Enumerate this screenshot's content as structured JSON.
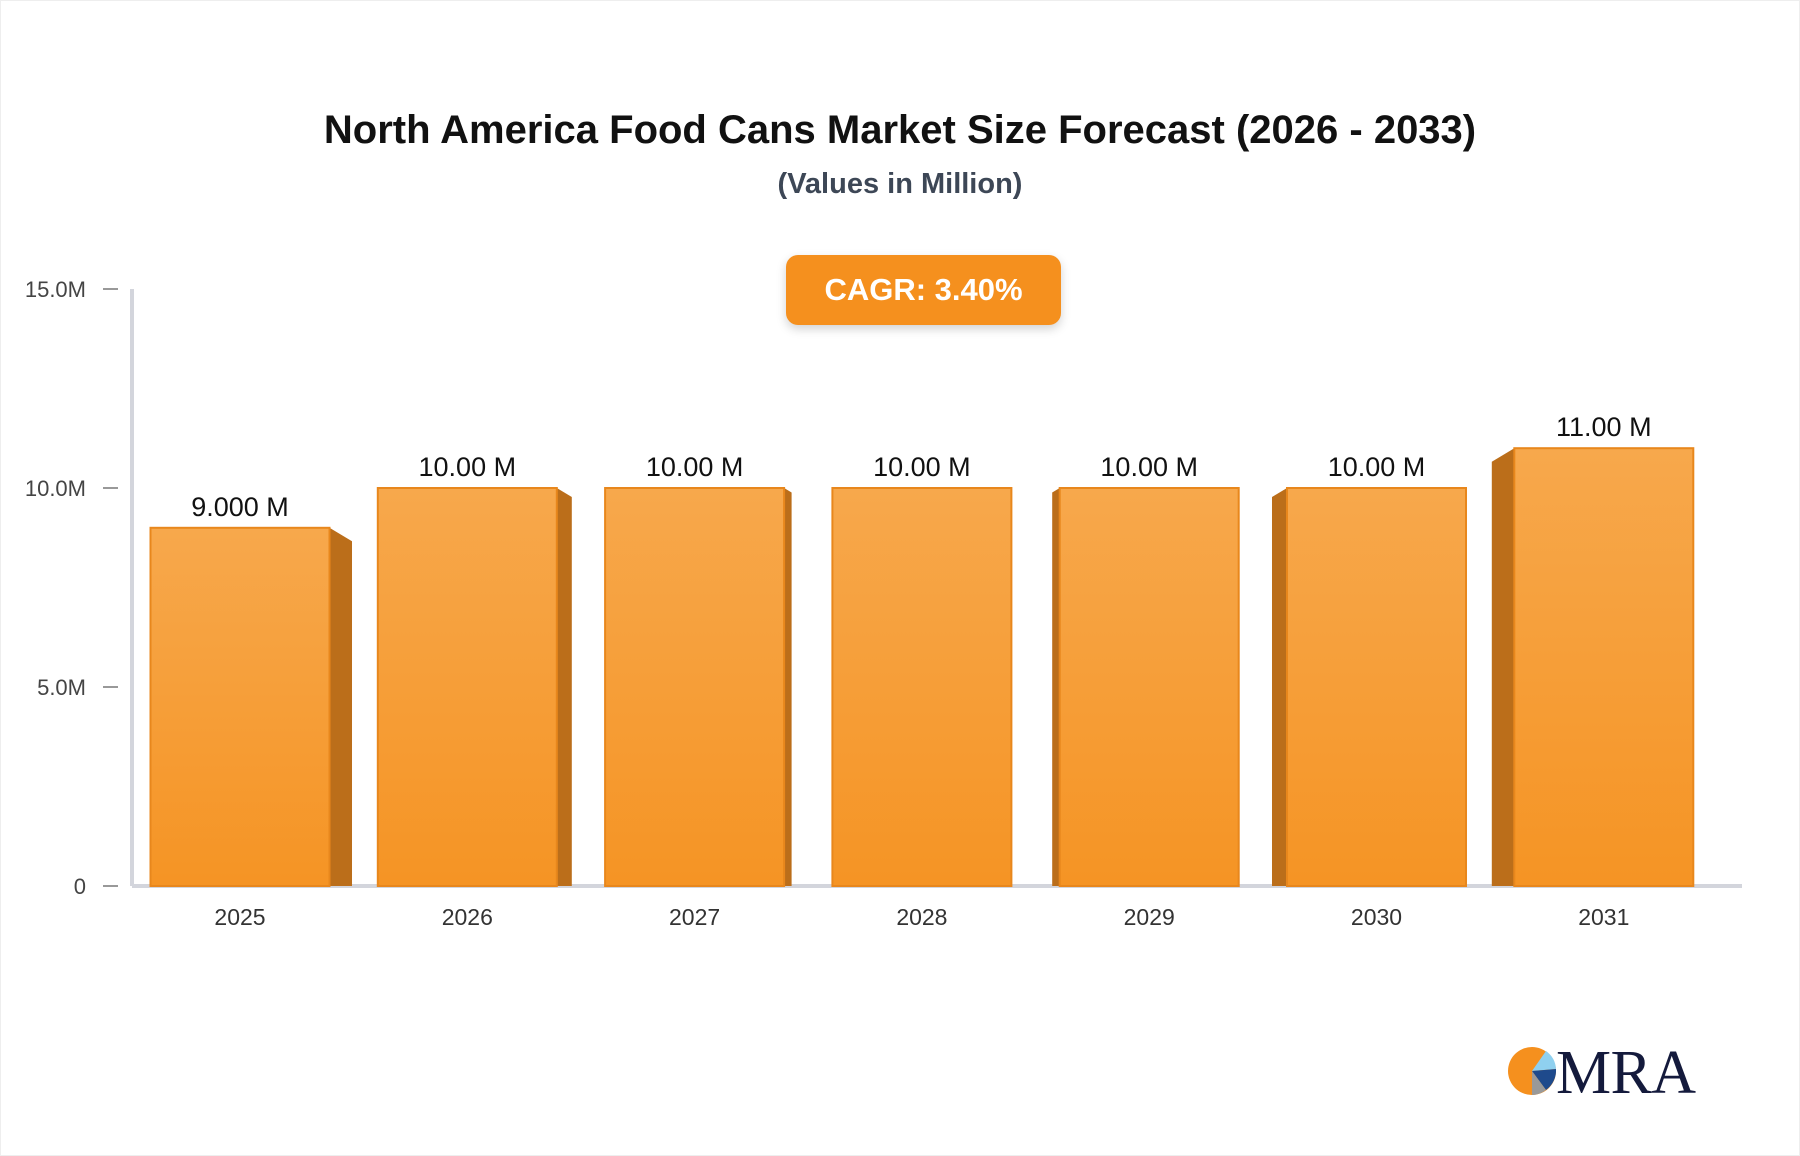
{
  "chart_data": {
    "type": "bar",
    "title": "North America Food Cans Market Size Forecast (2026 - 2033)",
    "subtitle": "(Values in Million)",
    "categories": [
      "2025",
      "2026",
      "2027",
      "2028",
      "2029",
      "2030",
      "2031"
    ],
    "values": [
      9,
      10,
      10,
      10,
      10,
      10,
      11
    ],
    "data_labels": [
      "9.000 M",
      "10.00 M",
      "10.00 M",
      "10.00 M",
      "10.00 M",
      "10.00 M",
      "11.00 M"
    ],
    "yticks": [
      {
        "v": 0,
        "label": "0"
      },
      {
        "v": 5,
        "label": "5.0M"
      },
      {
        "v": 10,
        "label": "10.0M"
      },
      {
        "v": 15,
        "label": "15.0M"
      }
    ],
    "ylim": [
      0,
      15
    ],
    "xlabel": "",
    "ylabel": "",
    "grid": false,
    "bar_color": "#f5962a",
    "annotation": "CAGR: 3.40%"
  },
  "logo": {
    "text": "MRA"
  }
}
